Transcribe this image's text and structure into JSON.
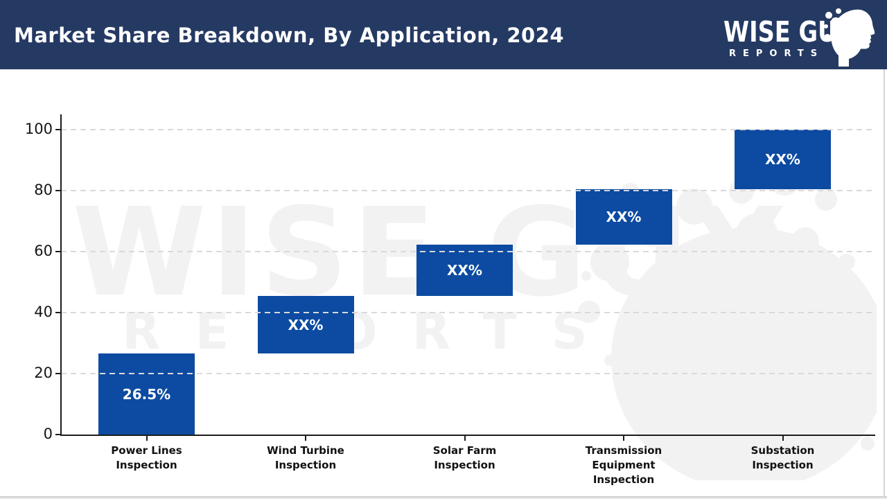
{
  "header": {
    "title": "Market Share Breakdown, By Application, 2024",
    "logo": {
      "main": "WISE GUY",
      "sub": "REPORTS"
    }
  },
  "watermark": {
    "line1": "WISE GUY",
    "line2": "REPORTS"
  },
  "colors": {
    "header_bg": "#253a63",
    "bar": "#0c4ba1",
    "value_label": "#ffffff",
    "watermark": "#f2f2f2",
    "axis": "#1c1c1c",
    "gridline": "#d9d9d9"
  },
  "chart_data": {
    "type": "bar",
    "subtype": "waterfall",
    "title": "Market Share Breakdown, By Application, 2024",
    "xlabel": "",
    "ylabel": "",
    "ylim": [
      0,
      100
    ],
    "yticks": [
      0,
      20,
      40,
      60,
      80,
      100
    ],
    "grid": "horizontal-dashed",
    "legend": "none",
    "categories": [
      "Power Lines Inspection",
      "Wind Turbine Inspection",
      "Solar Farm Inspection",
      "Transmission Equipment Inspection",
      "Substation Inspection"
    ],
    "segments": [
      {
        "name": "Power Lines Inspection",
        "start": 0,
        "end": 26.5,
        "label": "26.5%",
        "label_lines": [
          "Power Lines",
          "Inspection"
        ]
      },
      {
        "name": "Wind Turbine Inspection",
        "start": 26.5,
        "end": 45.5,
        "label": "XX%",
        "label_lines": [
          "Wind Turbine",
          "Inspection"
        ]
      },
      {
        "name": "Solar Farm Inspection",
        "start": 45.5,
        "end": 62.3,
        "label": "XX%",
        "label_lines": [
          "Solar Farm",
          "Inspection"
        ]
      },
      {
        "name": "Transmission Equipment Inspection",
        "start": 62.3,
        "end": 80.5,
        "label": "XX%",
        "label_lines": [
          "Transmission",
          "Equipment",
          "Inspection"
        ]
      },
      {
        "name": "Substation Inspection",
        "start": 80.5,
        "end": 100,
        "label": "XX%",
        "label_lines": [
          "Substation",
          "Inspection"
        ]
      }
    ]
  }
}
